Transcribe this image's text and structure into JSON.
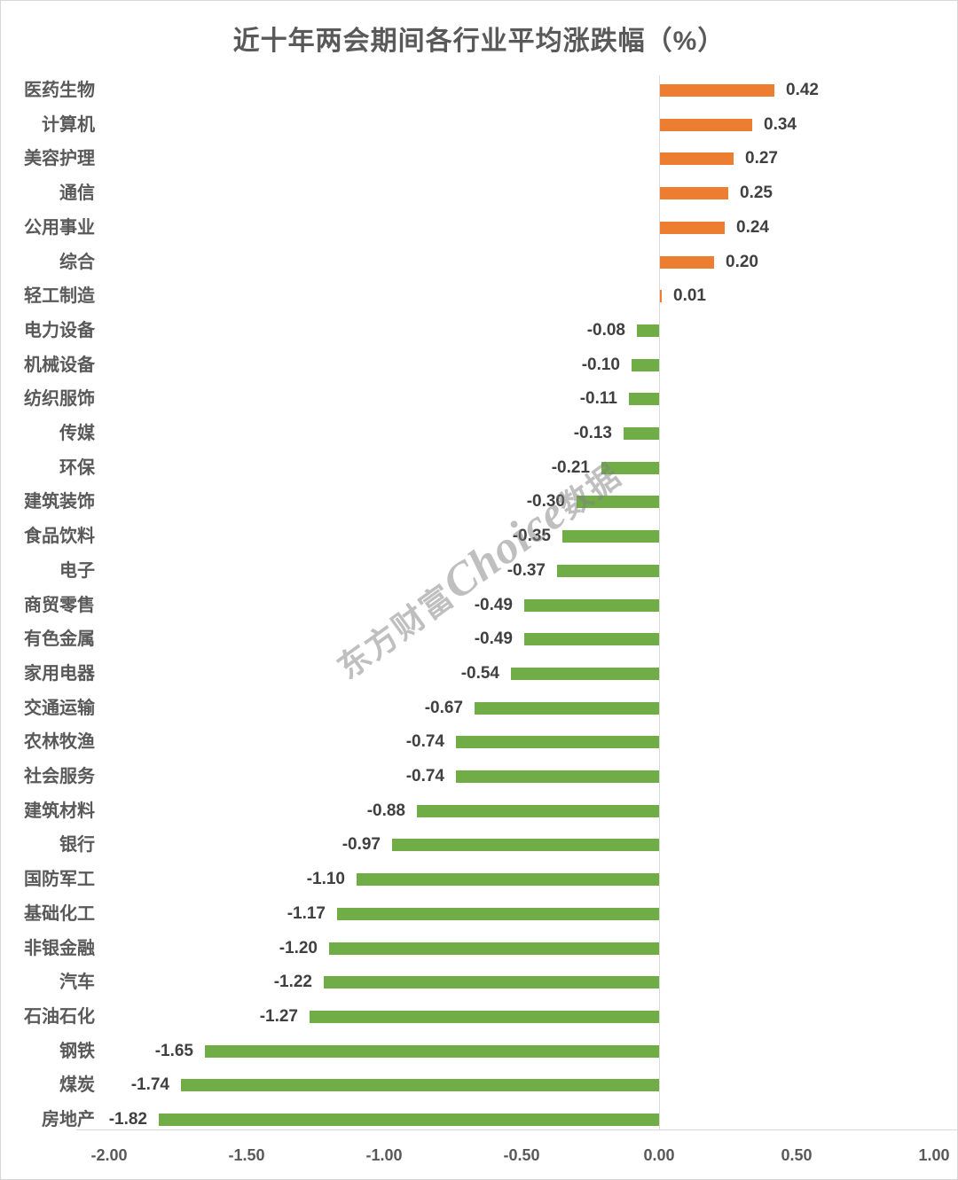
{
  "chart_data": {
    "type": "bar",
    "orientation": "horizontal",
    "title": "近十年两会期间各行业平均涨跌幅（%）",
    "categories": [
      "医药生物",
      "计算机",
      "美容护理",
      "通信",
      "公用事业",
      "综合",
      "轻工制造",
      "电力设备",
      "机械设备",
      "纺织服饰",
      "传媒",
      "环保",
      "建筑装饰",
      "食品饮料",
      "电子",
      "商贸零售",
      "有色金属",
      "家用电器",
      "交通运输",
      "农林牧渔",
      "社会服务",
      "建筑材料",
      "银行",
      "国防军工",
      "基础化工",
      "非银金融",
      "汽车",
      "石油石化",
      "钢铁",
      "煤炭",
      "房地产"
    ],
    "values": [
      0.42,
      0.34,
      0.27,
      0.25,
      0.24,
      0.2,
      0.01,
      -0.08,
      -0.1,
      -0.11,
      -0.13,
      -0.21,
      -0.3,
      -0.35,
      -0.37,
      -0.49,
      -0.49,
      -0.54,
      -0.67,
      -0.74,
      -0.74,
      -0.88,
      -0.97,
      -1.1,
      -1.17,
      -1.2,
      -1.22,
      -1.27,
      -1.65,
      -1.74,
      -1.82
    ],
    "value_label_decimals": 2,
    "xlabel": "",
    "ylabel": "",
    "xlim": [
      -2.0,
      1.0
    ],
    "x_ticks": [
      "-2.00",
      "-1.50",
      "-1.00",
      "-0.50",
      "0.00",
      "0.50",
      "1.00"
    ],
    "grid": false,
    "legend": false,
    "positive_color": "#ED7D31",
    "negative_color": "#70AD47"
  },
  "watermark": {
    "part1": "东方财富",
    "brand": "Choice",
    "part2": "数据"
  },
  "colors": {
    "title_text": "#595959",
    "category_text": "#595959",
    "value_text": "#404040",
    "tick_text": "#595959",
    "axis_line": "#d9d9d9"
  }
}
